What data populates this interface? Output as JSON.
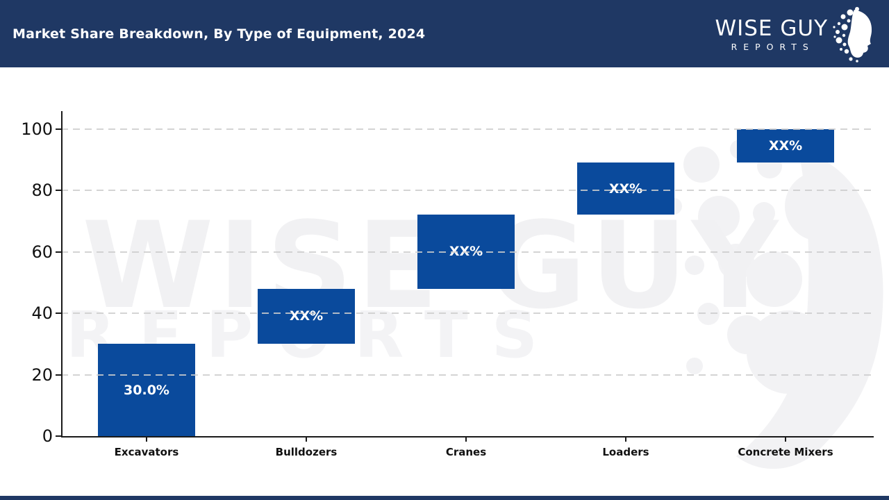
{
  "header": {
    "title": "Market Share Breakdown, By Type of Equipment, 2024",
    "bg_color": "#1f3864",
    "logo": {
      "name": "WISE GUY",
      "sub": "REPORTS"
    }
  },
  "watermark": {
    "line1": "WISE GUY",
    "line2": "REPORTS"
  },
  "chart_data": {
    "type": "bar",
    "variant": "waterfall",
    "title": "Market Share Breakdown, By Type of Equipment, 2024",
    "categories": [
      "Excavators",
      "Bulldozers",
      "Cranes",
      "Loaders",
      "Concrete Mixers"
    ],
    "segments": [
      {
        "category": "Excavators",
        "start": 0,
        "end": 30,
        "value": 30,
        "label": "30.0%"
      },
      {
        "category": "Bulldozers",
        "start": 30,
        "end": 48,
        "value": 18,
        "label": "XX%"
      },
      {
        "category": "Cranes",
        "start": 48,
        "end": 72,
        "value": 24,
        "label": "XX%"
      },
      {
        "category": "Loaders",
        "start": 72,
        "end": 89,
        "value": 17,
        "label": "XX%"
      },
      {
        "category": "Concrete Mixers",
        "start": 89,
        "end": 100,
        "value": 11,
        "label": "XX%"
      }
    ],
    "yticks": [
      0,
      20,
      40,
      60,
      80,
      100
    ],
    "ylim": [
      0,
      105
    ],
    "xlabel": "",
    "ylabel": "",
    "grid": "horizontal-dashed",
    "legend": "none",
    "bar_color": "#0a4a9c",
    "label_color": "#ffffff"
  },
  "colors": {
    "header_bg": "#1f3864",
    "footer_bg": "#1f3864",
    "bar": "#0a4a9c",
    "grid": "#d9d9d9",
    "axis": "#1a1a1a",
    "watermark": "#f1f1f3"
  }
}
